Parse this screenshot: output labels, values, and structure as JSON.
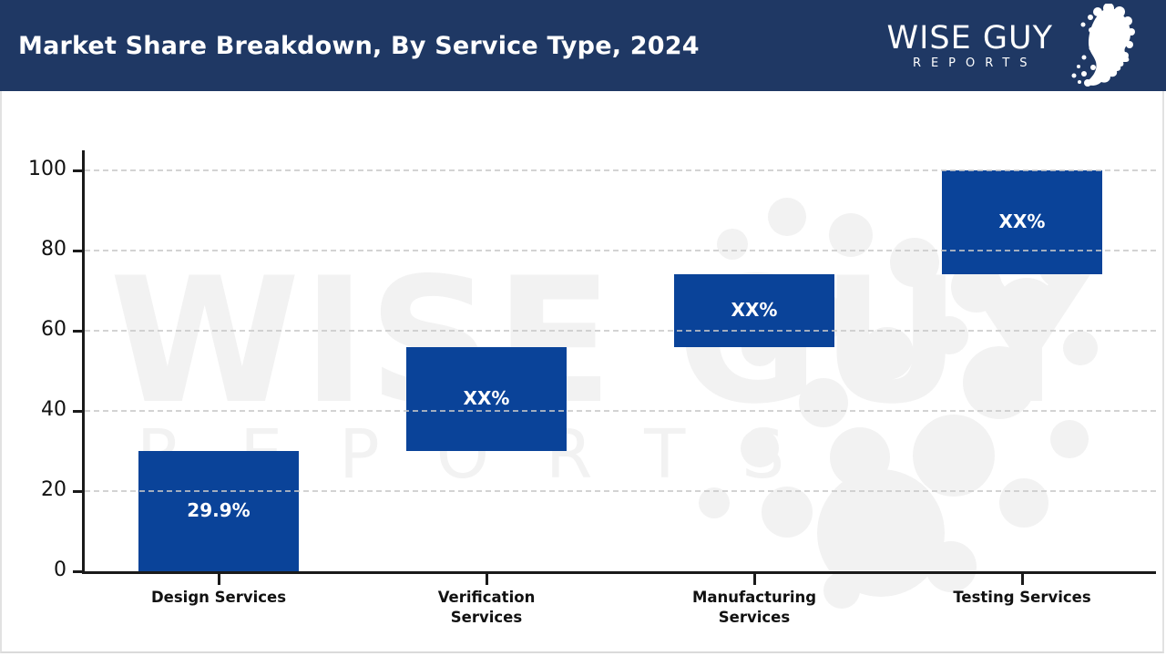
{
  "header": {
    "title": "Market Share Breakdown, By Service Type, 2024",
    "logo": {
      "line1": "WISE GUY",
      "line2": "REPORTS"
    }
  },
  "watermark": {
    "line1": "WISE GUY",
    "line2": "REPORTS"
  },
  "colors": {
    "header_bg": "#1f3864",
    "bar_blue": "#0a4399",
    "axis": "#1a1a1a",
    "gridline": "#d9d9d9",
    "watermark": "#f2f2f2",
    "panel_border": "#e2e2e2"
  },
  "chart_data": {
    "type": "bar",
    "subtype": "waterfall",
    "title": "Market Share Breakdown, By Service Type, 2024",
    "categories": [
      "Design Services",
      "Verification Services",
      "Manufacturing Services",
      "Testing Services"
    ],
    "bars": [
      {
        "category": "Design Services",
        "tick_lines": [
          "Design Services"
        ],
        "start": 0,
        "end": 29.9,
        "label": "29.9%"
      },
      {
        "category": "Verification Services",
        "tick_lines": [
          "Verification",
          "Services"
        ],
        "start": 29.9,
        "end": 55.9,
        "label": "XX%"
      },
      {
        "category": "Manufacturing Services",
        "tick_lines": [
          "Manufacturing",
          "Services"
        ],
        "start": 55.9,
        "end": 74.1,
        "label": "XX%"
      },
      {
        "category": "Testing Services",
        "tick_lines": [
          "Testing Services"
        ],
        "start": 74.1,
        "end": 100,
        "label": "XX%"
      }
    ],
    "yticks": [
      0,
      20,
      40,
      60,
      80,
      100
    ],
    "ylim": [
      0,
      105
    ],
    "xlabel": "",
    "ylabel": "",
    "grid": {
      "axis": "y",
      "style": "dashed"
    },
    "legend": "none",
    "bar_color": "#0a4399",
    "value_label_color": "#ffffff"
  }
}
